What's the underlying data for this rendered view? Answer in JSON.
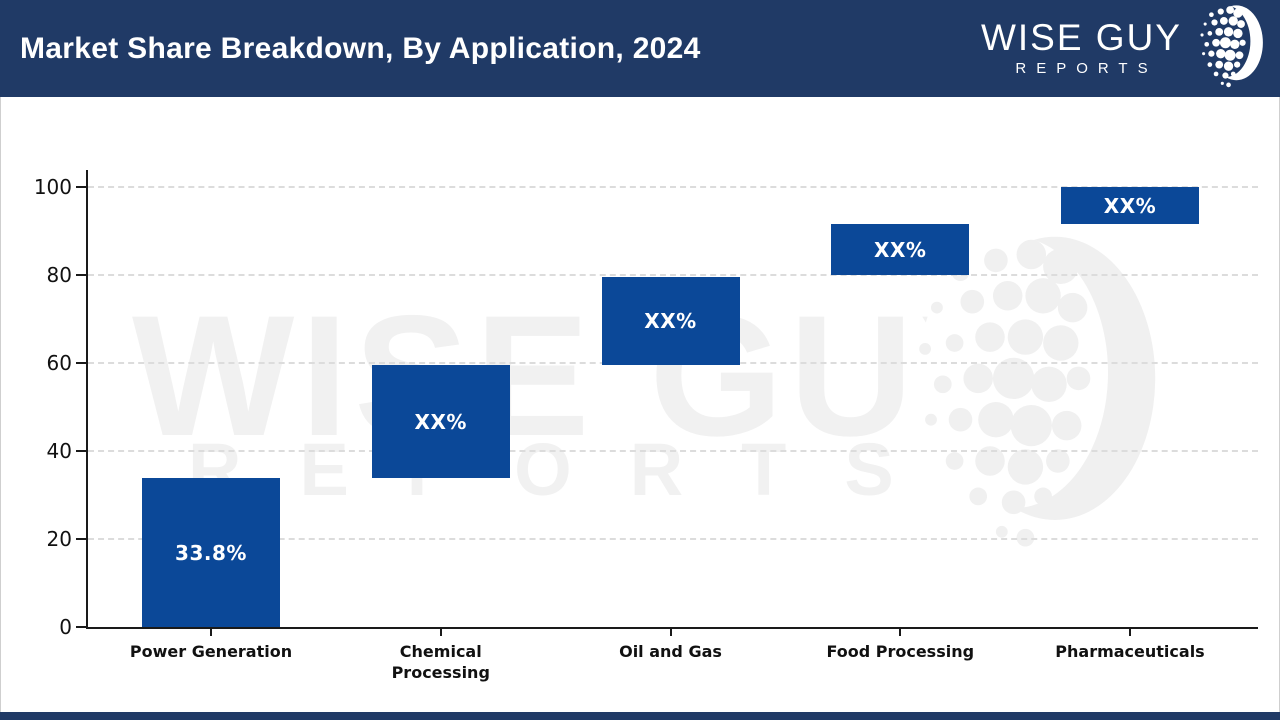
{
  "header": {
    "title": "Market Share Breakdown, By Application, 2024",
    "bg_color": "#203a66",
    "logo": {
      "line1": "WISE GUY",
      "line2": "REPORTS"
    }
  },
  "watermark": {
    "line1": "WISE GUY",
    "line2": "REPORTS"
  },
  "chart_data": {
    "type": "bar",
    "subtype": "waterfall",
    "title": "Market Share Breakdown, By Application, 2024",
    "categories": [
      {
        "name": "Power Generation",
        "lines": [
          "Power Generation"
        ]
      },
      {
        "name": "Chemical Processing",
        "lines": [
          "Chemical",
          "Processing"
        ]
      },
      {
        "name": "Oil and Gas",
        "lines": [
          "Oil and Gas"
        ]
      },
      {
        "name": "Food Processing",
        "lines": [
          "Food Processing"
        ]
      },
      {
        "name": "Pharmaceuticals",
        "lines": [
          "Pharmaceuticals"
        ]
      }
    ],
    "series": [
      {
        "name": "Market Share (%)",
        "segments": [
          {
            "start": 0,
            "end": 33.8,
            "label": "33.8%"
          },
          {
            "start": 33.8,
            "end": 59.5,
            "label": "XX%"
          },
          {
            "start": 59.5,
            "end": 79.5,
            "label": "XX%"
          },
          {
            "start": 80,
            "end": 91.5,
            "label": "XX%"
          },
          {
            "start": 91.5,
            "end": 100,
            "label": "XX%"
          }
        ]
      }
    ],
    "xlabel": "",
    "ylabel": "",
    "ylim": [
      0,
      100
    ],
    "yticks": [
      0,
      20,
      40,
      60,
      80,
      100
    ],
    "grid": "horizontal-dashed",
    "legend": "none",
    "bar_color": "#0b4898",
    "bar_label_color": "#ffffff",
    "grid_color": "#dcdcdc",
    "axis_color": "#1a1a1a"
  }
}
